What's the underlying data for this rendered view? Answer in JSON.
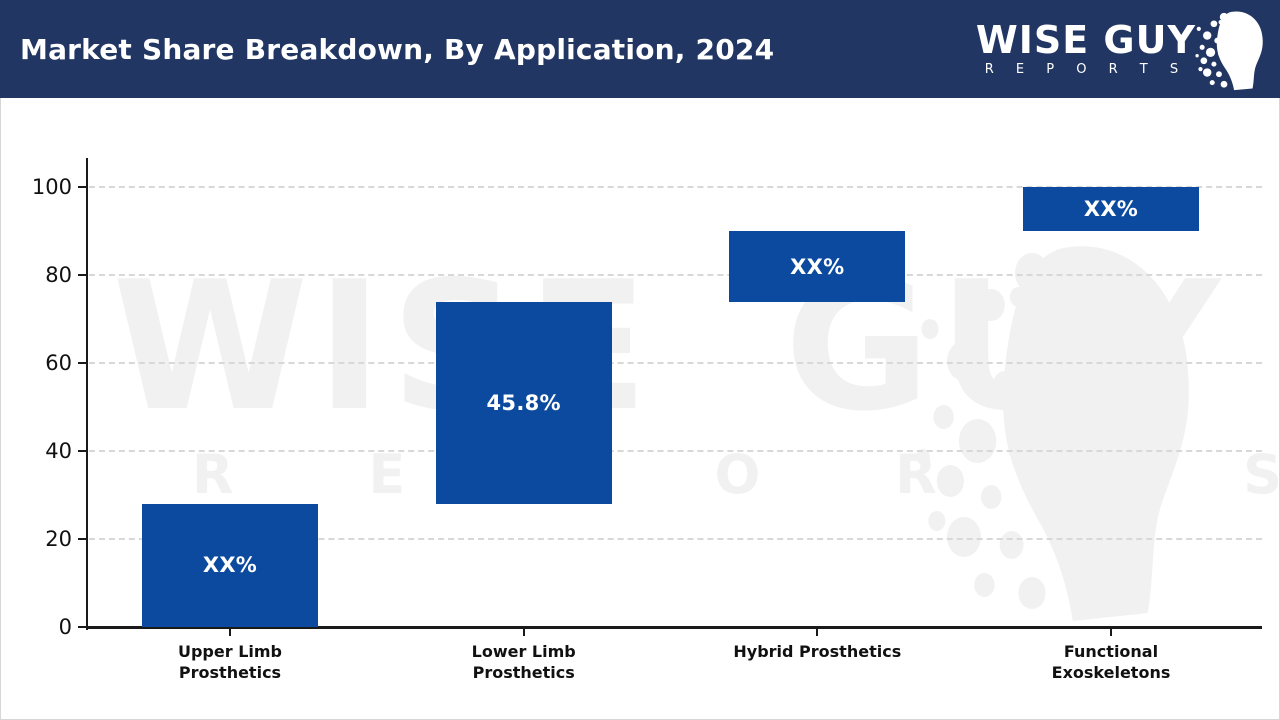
{
  "header": {
    "title": "Market Share Breakdown, By Application, 2024",
    "logo": {
      "main": "WISE GUY",
      "sub": "R E P O R T S"
    }
  },
  "watermark": {
    "line1": "WISE GUY",
    "line2": "R E P O R T S"
  },
  "colors": {
    "header_bg": "#223663",
    "bar": "#0b4a9e",
    "grid": "#d8d8d8",
    "axis": "#1a1a1a",
    "bar_label": "#ffffff",
    "watermark": "#f1f1f1"
  },
  "chart_data": {
    "type": "bar",
    "subtype": "stacked-waterfall",
    "title": "Market Share Breakdown, By Application, 2024",
    "categories": [
      "Upper Limb Prosthetics",
      "Lower Limb Prosthetics",
      "Hybrid Prosthetics",
      "Functional Exoskeletons"
    ],
    "category_lines": [
      [
        "Upper Limb",
        "Prosthetics"
      ],
      [
        "Lower Limb",
        "Prosthetics"
      ],
      [
        "Hybrid Prosthetics"
      ],
      [
        "Functional",
        "Exoskeletons"
      ]
    ],
    "segments": [
      {
        "category": "Upper Limb Prosthetics",
        "start": 0,
        "end": 28,
        "value": 28,
        "label": "XX%"
      },
      {
        "category": "Lower Limb Prosthetics",
        "start": 28,
        "end": 73.8,
        "value": 45.8,
        "label": "45.8%"
      },
      {
        "category": "Hybrid Prosthetics",
        "start": 73.8,
        "end": 90,
        "value": 16.2,
        "label": "XX%"
      },
      {
        "category": "Functional Exoskeletons",
        "start": 90,
        "end": 100,
        "value": 10,
        "label": "XX%"
      }
    ],
    "xlabel": "",
    "ylabel": "",
    "yticks": [
      0,
      20,
      40,
      60,
      80,
      100
    ],
    "ylim": [
      0,
      107
    ],
    "grid": {
      "horizontal": true,
      "style": "dashed"
    },
    "legend": "none"
  }
}
